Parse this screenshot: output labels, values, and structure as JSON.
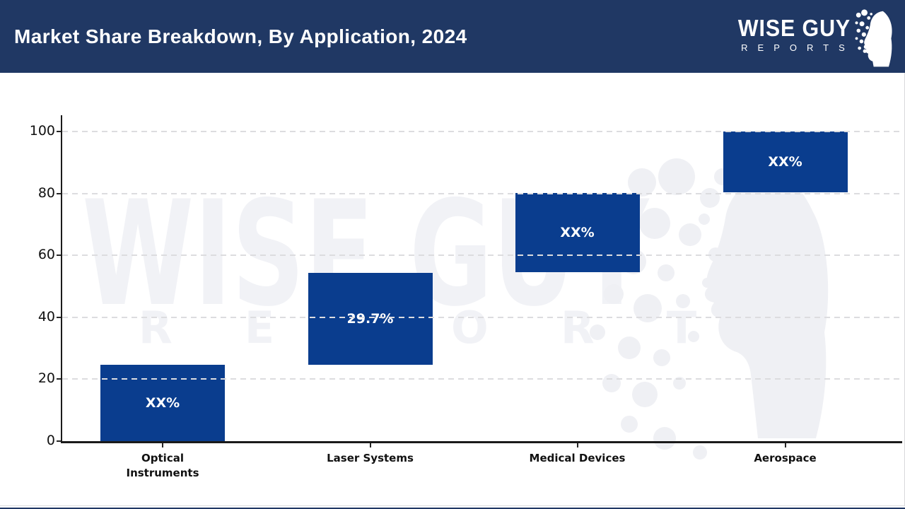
{
  "header": {
    "title": "Market Share Breakdown, By Application, 2024",
    "logo": {
      "line1": "WISE GUY",
      "line2": "REPORTS"
    },
    "bg_color": "#203864"
  },
  "watermark": {
    "line1": "WISE GUY",
    "line2": "REPORTS"
  },
  "chart_data": {
    "type": "bar",
    "subtype": "waterfall",
    "title": "Market Share Breakdown, By Application, 2024",
    "xlabel": "",
    "ylabel": "",
    "ylim": [
      0,
      100
    ],
    "yticks": [
      0,
      20,
      40,
      60,
      80,
      100
    ],
    "grid": "horizontal-dashed",
    "legend": "none",
    "bar_color": "#0a3d8e",
    "label_color": "#ffffff",
    "categories": [
      "Optical Instruments",
      "Laser Systems",
      "Medical Devices",
      "Aerospace"
    ],
    "segments": [
      {
        "category": "Optical Instruments",
        "display": "Optical\nInstruments",
        "start": 0,
        "end": 24.7,
        "label": "XX%"
      },
      {
        "category": "Laser Systems",
        "display": "Laser Systems",
        "start": 24.7,
        "end": 54.4,
        "label": "29.7%"
      },
      {
        "category": "Medical Devices",
        "display": "Medical Devices",
        "start": 54.5,
        "end": 80.1,
        "label": "XX%"
      },
      {
        "category": "Aerospace",
        "display": "Aerospace",
        "start": 80.3,
        "end": 99.9,
        "label": "XX%"
      }
    ]
  }
}
